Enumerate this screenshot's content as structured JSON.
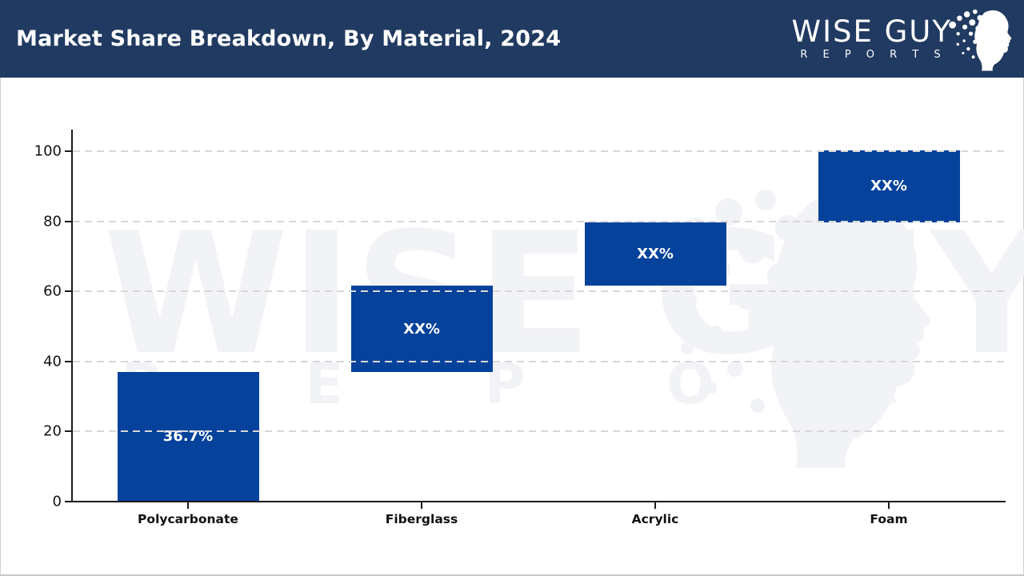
{
  "header": {
    "title": "Market Share Breakdown, By Material, 2024",
    "logo": {
      "line1": "WISE GUY",
      "line2": "R E P O R T S"
    }
  },
  "watermark": {
    "line1": "WISE GUY",
    "line2": "R E P O R T S"
  },
  "chart_data": {
    "type": "bar",
    "subtype": "waterfall",
    "title": "Market Share Breakdown, By Material, 2024",
    "categories": [
      "Polycarbonate",
      "Fiberglass",
      "Acrylic",
      "Foam"
    ],
    "bars": [
      {
        "category": "Polycarbonate",
        "start": 0,
        "end": 36.7,
        "label": "36.7%"
      },
      {
        "category": "Fiberglass",
        "start": 36.7,
        "end": 61.4,
        "label": "XX%"
      },
      {
        "category": "Acrylic",
        "start": 61.4,
        "end": 79.5,
        "label": "XX%"
      },
      {
        "category": "Foam",
        "start": 79.5,
        "end": 100,
        "label": "XX%"
      }
    ],
    "y_ticks": [
      0,
      20,
      40,
      60,
      80,
      100
    ],
    "ylim": [
      0,
      106
    ],
    "xlabel": "",
    "ylabel": "",
    "grid": "dashed-horizontal",
    "legend": "none"
  },
  "colors": {
    "header_bg": "#213a61",
    "bar": "#05429b",
    "grid": "#d8d8d8",
    "axis": "#1b1b1b",
    "watermark": "#f2f3f6",
    "bar_text": "#ffffff"
  }
}
